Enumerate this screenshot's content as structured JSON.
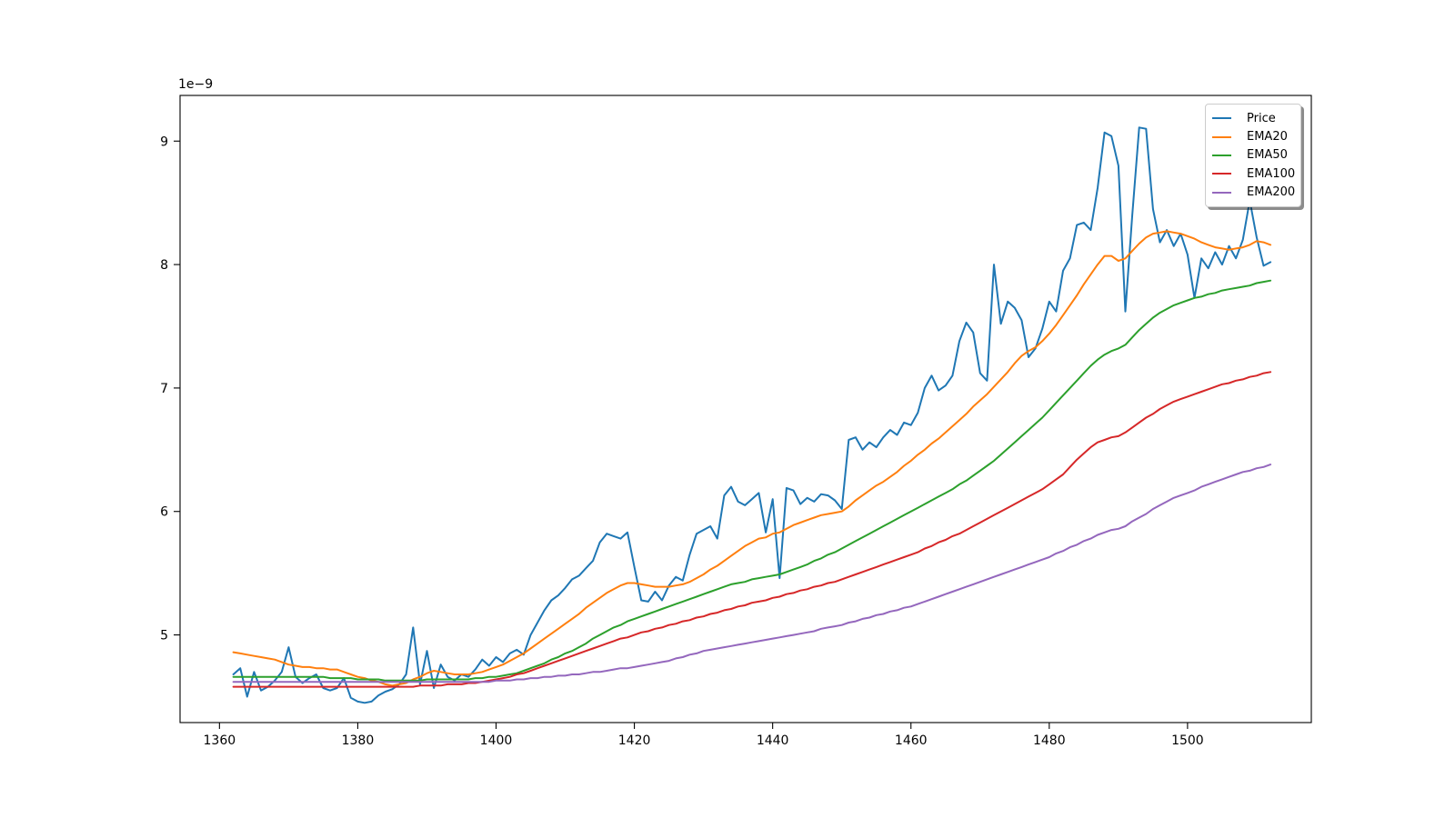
{
  "chart_data": {
    "type": "line",
    "title": "",
    "xlabel": "",
    "ylabel": "",
    "offset_label": "1e−9",
    "grid": false,
    "legend_position": "upper right",
    "x_ticks": [
      1360,
      1380,
      1400,
      1420,
      1440,
      1460,
      1480,
      1500
    ],
    "y_ticks": [
      5,
      6,
      7,
      8,
      9
    ],
    "xlim": [
      1354.3,
      1517.9
    ],
    "ylim": [
      4.29,
      9.37
    ],
    "x_start": 1362,
    "x_step": 1,
    "series": [
      {
        "name": "Price",
        "color": "#1f77b4",
        "values": [
          4.68,
          4.73,
          4.5,
          4.7,
          4.55,
          4.58,
          4.63,
          4.7,
          4.9,
          4.66,
          4.61,
          4.65,
          4.68,
          4.57,
          4.55,
          4.57,
          4.65,
          4.49,
          4.46,
          4.45,
          4.46,
          4.51,
          4.54,
          4.56,
          4.6,
          4.68,
          5.06,
          4.6,
          4.87,
          4.57,
          4.76,
          4.66,
          4.63,
          4.68,
          4.66,
          4.72,
          4.8,
          4.75,
          4.82,
          4.78,
          4.85,
          4.88,
          4.84,
          5.0,
          5.1,
          5.2,
          5.28,
          5.32,
          5.38,
          5.45,
          5.48,
          5.54,
          5.6,
          5.75,
          5.82,
          5.8,
          5.78,
          5.83,
          5.55,
          5.28,
          5.27,
          5.35,
          5.28,
          5.4,
          5.47,
          5.44,
          5.65,
          5.82,
          5.85,
          5.88,
          5.78,
          6.13,
          6.2,
          6.08,
          6.05,
          6.1,
          6.15,
          5.83,
          6.1,
          5.46,
          6.19,
          6.17,
          6.06,
          6.11,
          6.08,
          6.14,
          6.13,
          6.09,
          6.02,
          6.58,
          6.6,
          6.5,
          6.56,
          6.52,
          6.6,
          6.66,
          6.62,
          6.72,
          6.7,
          6.8,
          7.0,
          7.1,
          6.98,
          7.02,
          7.1,
          7.38,
          7.53,
          7.45,
          7.12,
          7.06,
          8.0,
          7.52,
          7.7,
          7.65,
          7.55,
          7.25,
          7.32,
          7.48,
          7.7,
          7.62,
          7.95,
          8.05,
          8.32,
          8.34,
          8.28,
          8.62,
          9.07,
          9.04,
          8.8,
          7.62,
          8.4,
          9.11,
          9.1,
          8.45,
          8.18,
          8.28,
          8.15,
          8.25,
          8.08,
          7.73,
          8.05,
          7.97,
          8.1,
          8.0,
          8.15,
          8.05,
          8.2,
          8.52,
          8.22,
          7.99,
          8.02
        ]
      },
      {
        "name": "EMA20",
        "color": "#ff7f0e",
        "values": [
          4.86,
          4.85,
          4.84,
          4.83,
          4.82,
          4.81,
          4.8,
          4.78,
          4.76,
          4.75,
          4.74,
          4.74,
          4.73,
          4.73,
          4.72,
          4.72,
          4.7,
          4.68,
          4.66,
          4.65,
          4.63,
          4.62,
          4.6,
          4.59,
          4.6,
          4.61,
          4.64,
          4.66,
          4.69,
          4.71,
          4.7,
          4.69,
          4.68,
          4.68,
          4.68,
          4.69,
          4.7,
          4.72,
          4.74,
          4.76,
          4.79,
          4.82,
          4.85,
          4.89,
          4.93,
          4.97,
          5.01,
          5.05,
          5.09,
          5.13,
          5.17,
          5.22,
          5.26,
          5.3,
          5.34,
          5.37,
          5.4,
          5.42,
          5.42,
          5.41,
          5.4,
          5.39,
          5.39,
          5.39,
          5.4,
          5.41,
          5.43,
          5.46,
          5.49,
          5.53,
          5.56,
          5.6,
          5.64,
          5.68,
          5.72,
          5.75,
          5.78,
          5.79,
          5.82,
          5.83,
          5.86,
          5.89,
          5.91,
          5.93,
          5.95,
          5.97,
          5.98,
          5.99,
          6.0,
          6.04,
          6.09,
          6.13,
          6.17,
          6.21,
          6.24,
          6.28,
          6.32,
          6.37,
          6.41,
          6.46,
          6.5,
          6.55,
          6.59,
          6.64,
          6.69,
          6.74,
          6.79,
          6.85,
          6.9,
          6.95,
          7.01,
          7.07,
          7.13,
          7.2,
          7.26,
          7.3,
          7.33,
          7.38,
          7.44,
          7.51,
          7.59,
          7.67,
          7.75,
          7.84,
          7.92,
          8.0,
          8.07,
          8.07,
          8.03,
          8.05,
          8.11,
          8.17,
          8.22,
          8.25,
          8.26,
          8.27,
          8.26,
          8.25,
          8.23,
          8.21,
          8.18,
          8.16,
          8.14,
          8.13,
          8.12,
          8.13,
          8.14,
          8.16,
          8.19,
          8.18,
          8.16
        ]
      },
      {
        "name": "EMA50",
        "color": "#2ca02c",
        "values": [
          4.66,
          4.66,
          4.66,
          4.66,
          4.66,
          4.66,
          4.66,
          4.66,
          4.66,
          4.66,
          4.66,
          4.66,
          4.66,
          4.66,
          4.65,
          4.65,
          4.65,
          4.65,
          4.64,
          4.64,
          4.64,
          4.64,
          4.63,
          4.63,
          4.63,
          4.63,
          4.63,
          4.63,
          4.64,
          4.64,
          4.64,
          4.64,
          4.64,
          4.64,
          4.64,
          4.65,
          4.65,
          4.66,
          4.66,
          4.67,
          4.68,
          4.69,
          4.71,
          4.73,
          4.75,
          4.77,
          4.8,
          4.82,
          4.85,
          4.87,
          4.9,
          4.93,
          4.97,
          5.0,
          5.03,
          5.06,
          5.08,
          5.11,
          5.13,
          5.15,
          5.17,
          5.19,
          5.21,
          5.23,
          5.25,
          5.27,
          5.29,
          5.31,
          5.33,
          5.35,
          5.37,
          5.39,
          5.41,
          5.42,
          5.43,
          5.45,
          5.46,
          5.47,
          5.48,
          5.49,
          5.51,
          5.53,
          5.55,
          5.57,
          5.6,
          5.62,
          5.65,
          5.67,
          5.7,
          5.73,
          5.76,
          5.79,
          5.82,
          5.85,
          5.88,
          5.91,
          5.94,
          5.97,
          6.0,
          6.03,
          6.06,
          6.09,
          6.12,
          6.15,
          6.18,
          6.22,
          6.25,
          6.29,
          6.33,
          6.37,
          6.41,
          6.46,
          6.51,
          6.56,
          6.61,
          6.66,
          6.71,
          6.76,
          6.82,
          6.88,
          6.94,
          7.0,
          7.06,
          7.12,
          7.18,
          7.23,
          7.27,
          7.3,
          7.32,
          7.35,
          7.41,
          7.47,
          7.52,
          7.57,
          7.61,
          7.64,
          7.67,
          7.69,
          7.71,
          7.73,
          7.74,
          7.76,
          7.77,
          7.79,
          7.8,
          7.81,
          7.82,
          7.83,
          7.85,
          7.86,
          7.87
        ]
      },
      {
        "name": "EMA100",
        "color": "#d62728",
        "values": [
          4.58,
          4.58,
          4.58,
          4.58,
          4.58,
          4.58,
          4.58,
          4.58,
          4.58,
          4.58,
          4.58,
          4.58,
          4.58,
          4.58,
          4.58,
          4.58,
          4.58,
          4.58,
          4.58,
          4.58,
          4.58,
          4.58,
          4.58,
          4.58,
          4.58,
          4.58,
          4.58,
          4.59,
          4.59,
          4.59,
          4.59,
          4.6,
          4.6,
          4.6,
          4.61,
          4.61,
          4.62,
          4.63,
          4.64,
          4.65,
          4.66,
          4.68,
          4.69,
          4.71,
          4.73,
          4.75,
          4.77,
          4.79,
          4.81,
          4.83,
          4.85,
          4.87,
          4.89,
          4.91,
          4.93,
          4.95,
          4.97,
          4.98,
          5.0,
          5.02,
          5.03,
          5.05,
          5.06,
          5.08,
          5.09,
          5.11,
          5.12,
          5.14,
          5.15,
          5.17,
          5.18,
          5.2,
          5.21,
          5.23,
          5.24,
          5.26,
          5.27,
          5.28,
          5.3,
          5.31,
          5.33,
          5.34,
          5.36,
          5.37,
          5.39,
          5.4,
          5.42,
          5.43,
          5.45,
          5.47,
          5.49,
          5.51,
          5.53,
          5.55,
          5.57,
          5.59,
          5.61,
          5.63,
          5.65,
          5.67,
          5.7,
          5.72,
          5.75,
          5.77,
          5.8,
          5.82,
          5.85,
          5.88,
          5.91,
          5.94,
          5.97,
          6.0,
          6.03,
          6.06,
          6.09,
          6.12,
          6.15,
          6.18,
          6.22,
          6.26,
          6.3,
          6.36,
          6.42,
          6.47,
          6.52,
          6.56,
          6.58,
          6.6,
          6.61,
          6.64,
          6.68,
          6.72,
          6.76,
          6.79,
          6.83,
          6.86,
          6.89,
          6.91,
          6.93,
          6.95,
          6.97,
          6.99,
          7.01,
          7.03,
          7.04,
          7.06,
          7.07,
          7.09,
          7.1,
          7.12,
          7.13
        ]
      },
      {
        "name": "EMA200",
        "color": "#9467bd",
        "values": [
          4.62,
          4.62,
          4.62,
          4.62,
          4.62,
          4.62,
          4.62,
          4.62,
          4.62,
          4.62,
          4.62,
          4.62,
          4.62,
          4.62,
          4.62,
          4.62,
          4.62,
          4.62,
          4.62,
          4.62,
          4.62,
          4.62,
          4.62,
          4.62,
          4.62,
          4.62,
          4.62,
          4.62,
          4.62,
          4.62,
          4.62,
          4.62,
          4.62,
          4.62,
          4.62,
          4.62,
          4.62,
          4.62,
          4.63,
          4.63,
          4.63,
          4.64,
          4.64,
          4.65,
          4.65,
          4.66,
          4.66,
          4.67,
          4.67,
          4.68,
          4.68,
          4.69,
          4.7,
          4.7,
          4.71,
          4.72,
          4.73,
          4.73,
          4.74,
          4.75,
          4.76,
          4.77,
          4.78,
          4.79,
          4.81,
          4.82,
          4.84,
          4.85,
          4.87,
          4.88,
          4.89,
          4.9,
          4.91,
          4.92,
          4.93,
          4.94,
          4.95,
          4.96,
          4.97,
          4.98,
          4.99,
          5.0,
          5.01,
          5.02,
          5.03,
          5.05,
          5.06,
          5.07,
          5.08,
          5.1,
          5.11,
          5.13,
          5.14,
          5.16,
          5.17,
          5.19,
          5.2,
          5.22,
          5.23,
          5.25,
          5.27,
          5.29,
          5.31,
          5.33,
          5.35,
          5.37,
          5.39,
          5.41,
          5.43,
          5.45,
          5.47,
          5.49,
          5.51,
          5.53,
          5.55,
          5.57,
          5.59,
          5.61,
          5.63,
          5.66,
          5.68,
          5.71,
          5.73,
          5.76,
          5.78,
          5.81,
          5.83,
          5.85,
          5.86,
          5.88,
          5.92,
          5.95,
          5.98,
          6.02,
          6.05,
          6.08,
          6.11,
          6.13,
          6.15,
          6.17,
          6.2,
          6.22,
          6.24,
          6.26,
          6.28,
          6.3,
          6.32,
          6.33,
          6.35,
          6.36,
          6.38
        ]
      }
    ]
  }
}
